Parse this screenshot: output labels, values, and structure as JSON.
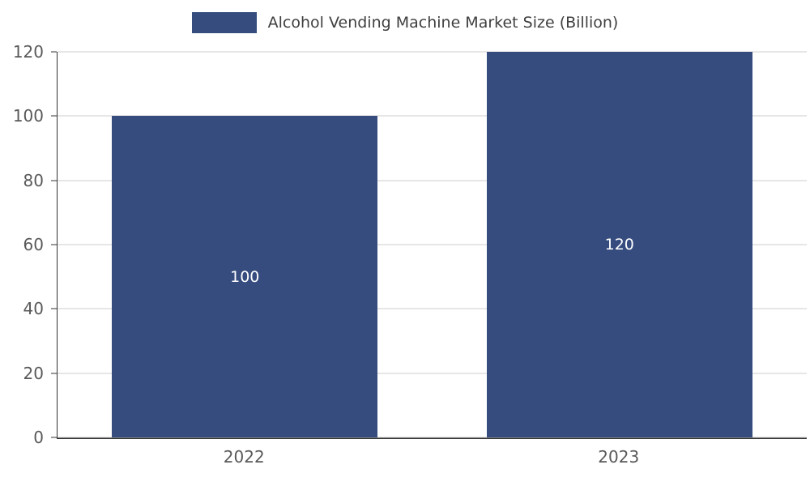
{
  "chart_data": {
    "type": "bar",
    "title": "Alcohol Vending Machine Market Size (Billion)",
    "categories": [
      "2022",
      "2023"
    ],
    "values": [
      100,
      120
    ],
    "xlabel": "",
    "ylabel": "",
    "ylim": [
      0,
      120
    ],
    "yticks": [
      0,
      20,
      40,
      60,
      80,
      100,
      120
    ],
    "grid": true,
    "legend_position": "top",
    "bar_color": "#364C7F",
    "bar_label_color": "#ffffff",
    "grid_color": "#cccccc",
    "axis_color": "#333333",
    "tick_label_color": "#595959"
  }
}
